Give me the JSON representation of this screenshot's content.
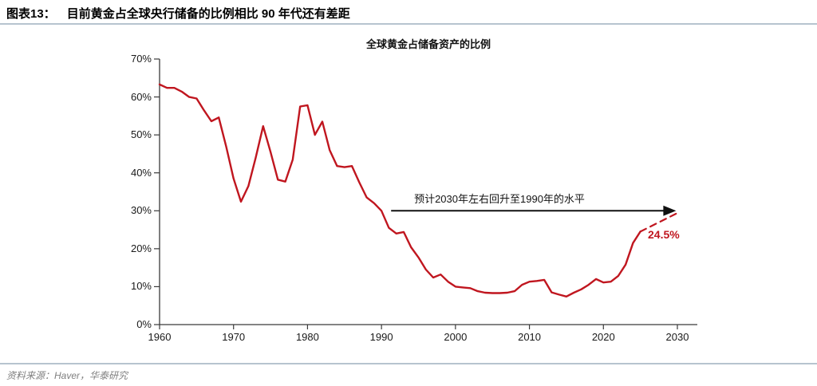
{
  "header": {
    "figure_label": "图表13：",
    "title": "目前黄金占全球央行储备的比例相比 90 年代还有差距"
  },
  "footer": {
    "source": "资料来源：Haver，华泰研究"
  },
  "chart_data": {
    "type": "line",
    "title": "全球黄金占储备资产的比例",
    "xlabel": "",
    "ylabel": "",
    "xlim": [
      1960,
      2030
    ],
    "ylim": [
      0,
      70
    ],
    "grid": false,
    "legend": "none",
    "axis_color": "#3a3a3a",
    "x_ticks": [
      1960,
      1970,
      1980,
      1990,
      2000,
      2010,
      2020,
      2030
    ],
    "x_tick_labels": [
      "1960",
      "1970",
      "1980",
      "1990",
      "2000",
      "2010",
      "2020",
      "2030"
    ],
    "y_ticks": [
      0,
      10,
      20,
      30,
      40,
      50,
      60,
      70
    ],
    "y_tick_labels": [
      "0%",
      "10%",
      "20%",
      "30%",
      "40%",
      "50%",
      "60%",
      "70%"
    ],
    "series": [
      {
        "name": "全球黄金占储备资产的比例",
        "color": "#c0161f",
        "x": [
          1960,
          1961,
          1962,
          1963,
          1964,
          1965,
          1966,
          1967,
          1968,
          1969,
          1970,
          1971,
          1972,
          1973,
          1974,
          1975,
          1976,
          1977,
          1978,
          1979,
          1980,
          1981,
          1982,
          1983,
          1984,
          1985,
          1986,
          1987,
          1988,
          1989,
          1990,
          1991,
          1992,
          1993,
          1994,
          1995,
          1996,
          1997,
          1998,
          1999,
          2000,
          2001,
          2002,
          2003,
          2004,
          2005,
          2006,
          2007,
          2008,
          2009,
          2010,
          2011,
          2012,
          2013,
          2014,
          2015,
          2016,
          2017,
          2018,
          2019,
          2020,
          2021,
          2022,
          2023,
          2024,
          2025
        ],
        "values": [
          63.3,
          62.4,
          62.4,
          61.4,
          60.0,
          59.6,
          56.5,
          53.6,
          54.6,
          47.0,
          38.5,
          32.4,
          36.5,
          44.0,
          52.3,
          45.5,
          38.2,
          37.7,
          43.5,
          57.5,
          57.8,
          50.0,
          53.5,
          46.0,
          41.8,
          41.5,
          41.8,
          37.5,
          33.5,
          32.0,
          30.0,
          25.5,
          24.0,
          24.4,
          20.4,
          17.7,
          14.5,
          12.4,
          13.2,
          11.3,
          10.0,
          9.8,
          9.6,
          8.8,
          8.4,
          8.3,
          8.3,
          8.4,
          8.8,
          10.5,
          11.3,
          11.5,
          11.8,
          8.5,
          7.9,
          7.4,
          8.4,
          9.3,
          10.5,
          12.0,
          11.1,
          11.3,
          12.8,
          15.8,
          21.5,
          24.5
        ]
      }
    ],
    "forecast": {
      "style": "dashed",
      "color": "#c0161f",
      "x": [
        2025,
        2030
      ],
      "values": [
        24.5,
        29.4
      ]
    },
    "annotation": {
      "text": "预计2030年左右回升至1990年的水平",
      "arrow_from_year": 1991.3,
      "arrow_to_year": 2029.5,
      "arrow_level_pct": 30,
      "color": "#111111"
    },
    "end_label": {
      "text": "24.5%",
      "color": "#c0161f"
    }
  }
}
